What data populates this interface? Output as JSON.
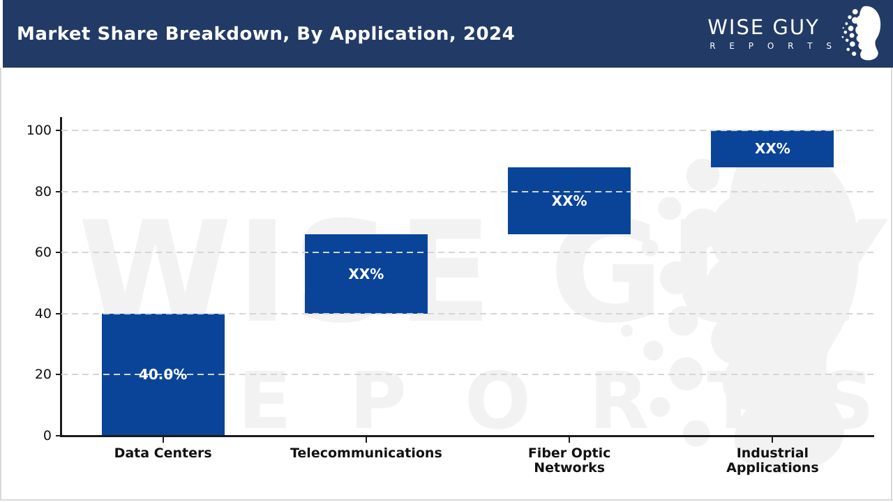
{
  "header": {
    "title": "Market Share Breakdown, By Application, 2024",
    "logo": {
      "line1": "WISE GUY",
      "line2": "R E P O R T S"
    }
  },
  "watermark": {
    "line1": "WISE GUY",
    "line2": "R E P O R T S"
  },
  "colors": {
    "header_bg": "#223a66",
    "bar": "#0a4499",
    "bar_label": "#ffffff",
    "grid": "#d5d5d5",
    "axis": "#1a1a1a",
    "watermark": "#f2f2f2"
  },
  "chart_data": {
    "type": "bar",
    "subtype": "waterfall",
    "title": "Market Share Breakdown, By Application, 2024",
    "categories": [
      "Data Centers",
      "Telecommunications",
      "Fiber Optic\nNetworks",
      "Industrial\nApplications"
    ],
    "series": [
      {
        "name": "Market Share (%)",
        "segments": [
          {
            "category": "Data Centers",
            "start": 0,
            "end": 40,
            "label": "40.0%"
          },
          {
            "category": "Telecommunications",
            "start": 40,
            "end": 66,
            "label": "XX%"
          },
          {
            "category": "Fiber Optic Networks",
            "start": 66,
            "end": 88,
            "label": "XX%"
          },
          {
            "category": "Industrial Applications",
            "start": 88,
            "end": 100,
            "label": "XX%"
          }
        ]
      }
    ],
    "xlabel": "",
    "ylabel": "",
    "ylim": [
      0,
      100
    ],
    "yticks": [
      0,
      20,
      40,
      60,
      80,
      100
    ],
    "grid": "horizontal-dashed",
    "legend": "none"
  }
}
